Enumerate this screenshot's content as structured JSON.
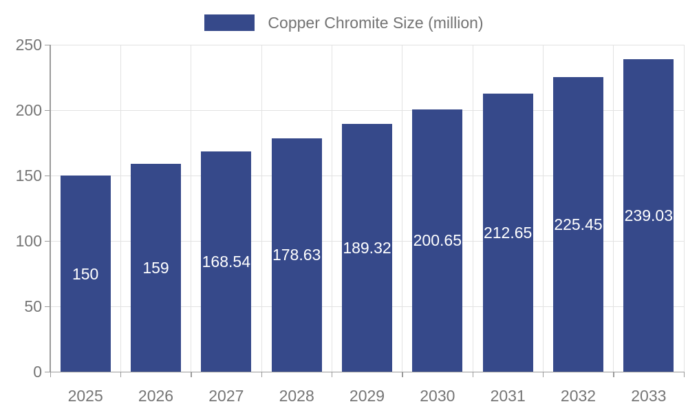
{
  "chart_data": {
    "type": "bar",
    "title": "Copper Chromite Size (million)",
    "legend_position": "top",
    "categories": [
      "2025",
      "2026",
      "2027",
      "2028",
      "2029",
      "2030",
      "2031",
      "2032",
      "2033"
    ],
    "values": [
      150,
      159,
      168.54,
      178.63,
      189.32,
      200.65,
      212.65,
      225.45,
      239.03
    ],
    "value_labels": [
      "150",
      "159",
      "168.54",
      "178.63",
      "189.32",
      "200.65",
      "212.65",
      "225.45",
      "239.03"
    ],
    "xlabel": "",
    "ylabel": "",
    "ylim": [
      0,
      250
    ],
    "yticks": [
      0,
      50,
      100,
      150,
      200,
      250
    ],
    "grid": true,
    "colors": {
      "bar": "#36498a",
      "value_label": "#ffffff",
      "axis_text": "#757575",
      "legend_text": "#737373",
      "gridline": "#e2e2e2",
      "axis_line": "#9a9a9a",
      "background": "#ffffff"
    }
  }
}
